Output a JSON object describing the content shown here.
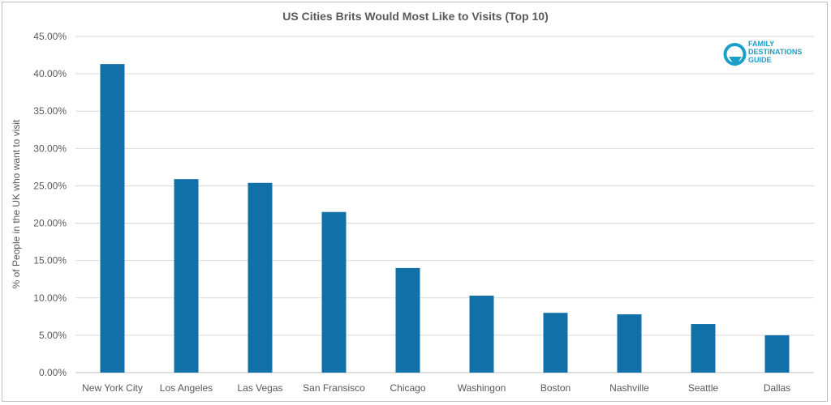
{
  "chart_data": {
    "type": "bar",
    "title": "US Cities Brits Would Most Like to Visits (Top 10)",
    "xlabel": "",
    "ylabel": "% of People in the UK who want to visit",
    "ylim": [
      0,
      45
    ],
    "yticks": [
      "0.00%",
      "5.00%",
      "10.00%",
      "15.00%",
      "20.00%",
      "25.00%",
      "30.00%",
      "35.00%",
      "40.00%",
      "45.00%"
    ],
    "grid": true,
    "categories": [
      "New York City",
      "Los Angeles",
      "Las Vegas",
      "San Fransisco",
      "Chicago",
      "Washingon",
      "Boston",
      "Nashville",
      "Seattle",
      "Dallas"
    ],
    "values": [
      41.3,
      25.9,
      25.4,
      21.5,
      14.0,
      10.3,
      8.0,
      7.8,
      6.5,
      5.0
    ],
    "bar_color": "#1170a8"
  },
  "logo": {
    "line1": "FAMILY",
    "line2": "DESTINATIONS",
    "line3": "GUIDE",
    "color": "#1a9fc9"
  }
}
